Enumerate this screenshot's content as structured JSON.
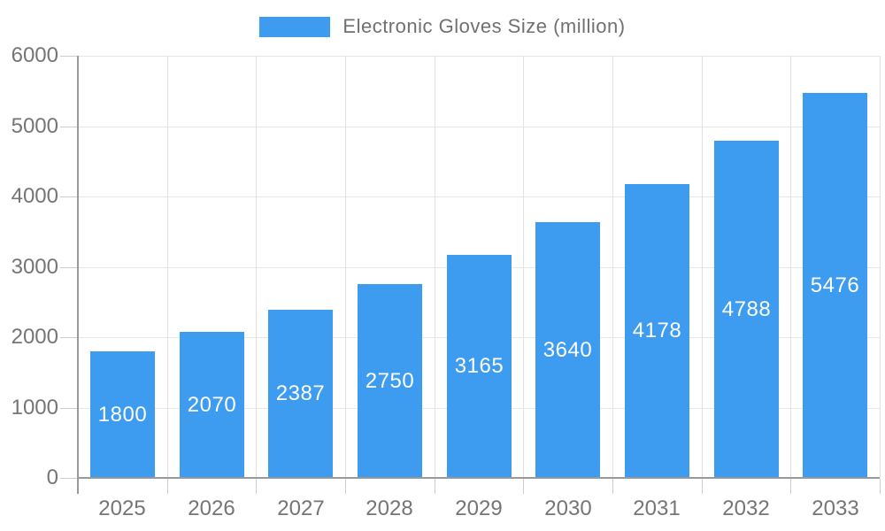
{
  "legend": {
    "label": "Electronic Gloves Size (million)"
  },
  "chart_data": {
    "type": "bar",
    "title": "Electronic Gloves Size (million)",
    "categories": [
      "2025",
      "2026",
      "2027",
      "2028",
      "2029",
      "2030",
      "2031",
      "2032",
      "2033"
    ],
    "values": [
      1800,
      2070,
      2387,
      2750,
      3165,
      3640,
      4178,
      4788,
      5476
    ],
    "series": [
      {
        "name": "Electronic Gloves Size (million)",
        "values": [
          1800,
          2070,
          2387,
          2750,
          3165,
          3640,
          4178,
          4788,
          5476
        ]
      }
    ],
    "xlabel": "",
    "ylabel": "",
    "ylim": [
      0,
      6000
    ],
    "yticks": [
      0,
      1000,
      2000,
      3000,
      4000,
      5000,
      6000
    ],
    "grid": true,
    "legend_position": "top-center",
    "value_labels": "inside-center",
    "colors": {
      "bar": "#3D9CF0",
      "value_label": "#FFFFFF",
      "axis_text": "#757575",
      "grid_line": "#E6E6E6",
      "tick_line": "#CCCCCC",
      "axis_line": "#999999",
      "legend_text": "#707070",
      "background": "#FFFFFF"
    }
  }
}
